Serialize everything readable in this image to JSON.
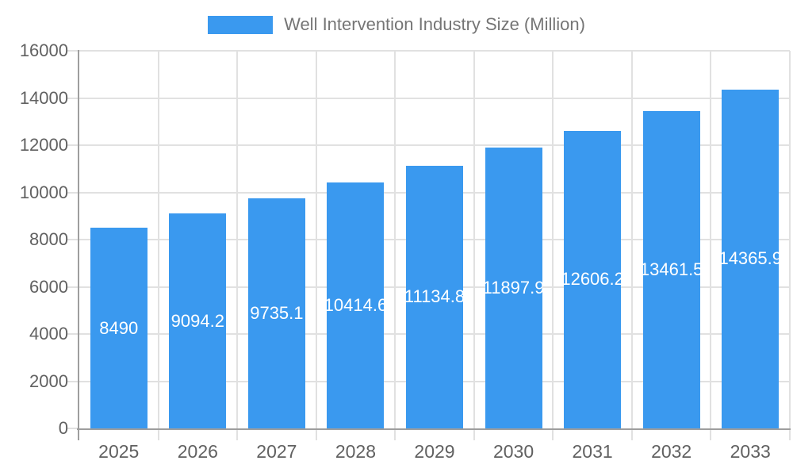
{
  "chart_data": {
    "type": "bar",
    "title": "Well Intervention Industry Size (Million)",
    "categories": [
      "2025",
      "2026",
      "2027",
      "2028",
      "2029",
      "2030",
      "2031",
      "2032",
      "2033"
    ],
    "values": [
      8490,
      9094.2,
      9735.1,
      10414.6,
      11134.8,
      11897.9,
      12606.2,
      13461.5,
      14365.9
    ],
    "bar_labels": [
      "8490",
      "9094.2",
      "9735.1",
      "10414.6",
      "11134.8",
      "11897.9",
      "12606.2",
      "13461.5",
      "14365.9"
    ],
    "xlabel": "",
    "ylabel": "",
    "ylim": [
      0,
      16000
    ],
    "yticks": [
      0,
      2000,
      4000,
      6000,
      8000,
      10000,
      12000,
      14000,
      16000
    ],
    "grid": true,
    "legend_position": "top-center",
    "colors": {
      "bar": "#3a99ef",
      "grid": "#e1e1e1",
      "axis": "#9e9e9e",
      "tick_text": "#616161",
      "legend_text": "#757575",
      "bar_label_text": "#ffffff",
      "background": "#ffffff"
    }
  }
}
